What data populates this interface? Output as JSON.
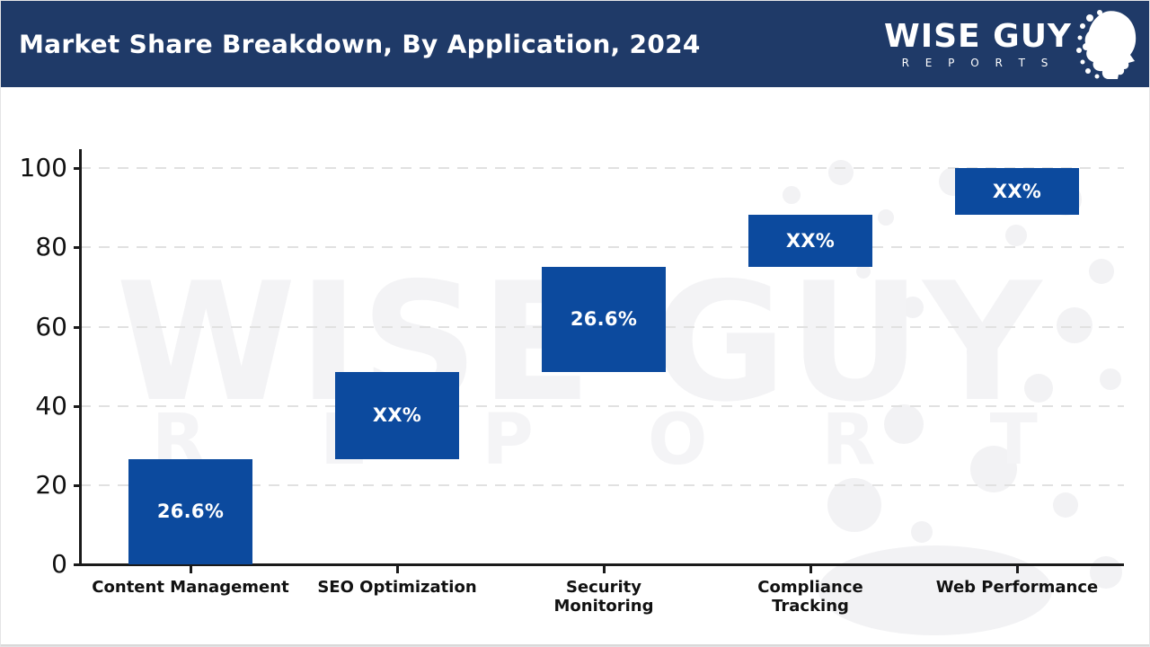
{
  "header": {
    "title": "Market Share Breakdown, By Application, 2024",
    "logo": {
      "line1": "WISE GUY",
      "line2": "R E P O R T S",
      "face_icon": "dotted-face-profile"
    }
  },
  "watermark": {
    "line1": "WISE GUY",
    "line2": "R E P O R T S"
  },
  "chart_data": {
    "type": "bar",
    "subtype": "waterfall",
    "title": "Market Share Breakdown, By Application, 2024",
    "categories": [
      "Content Management",
      "SEO Optimization",
      "Security Monitoring",
      "Compliance Tracking",
      "Web Performance"
    ],
    "category_lines": [
      [
        "Content Management"
      ],
      [
        "SEO Optimization"
      ],
      [
        "Security",
        "Monitoring"
      ],
      [
        "Compliance",
        "Tracking"
      ],
      [
        "Web Performance"
      ]
    ],
    "segment_starts": [
      0,
      26.6,
      48.6,
      75.2,
      88.2
    ],
    "segment_ends": [
      26.6,
      48.6,
      75.2,
      88.2,
      100
    ],
    "bar_labels": [
      "26.6%",
      "XX%",
      "26.6%",
      "XX%",
      "XX%"
    ],
    "ylim": [
      0,
      100
    ],
    "yticks": [
      0,
      20,
      40,
      60,
      80,
      100
    ],
    "xlabel": "",
    "ylabel": "",
    "grid": "horizontal-dashed",
    "legend": "none",
    "bar_color": "#0c4a9e",
    "bar_label_color": "#ffffff",
    "axis_color": "#1a1a1a",
    "grid_color": "#e1e1e1"
  },
  "colors": {
    "header_bg": "#1f3a68",
    "header_text": "#ffffff",
    "watermark": "#f3f3f5",
    "background": "#ffffff"
  }
}
